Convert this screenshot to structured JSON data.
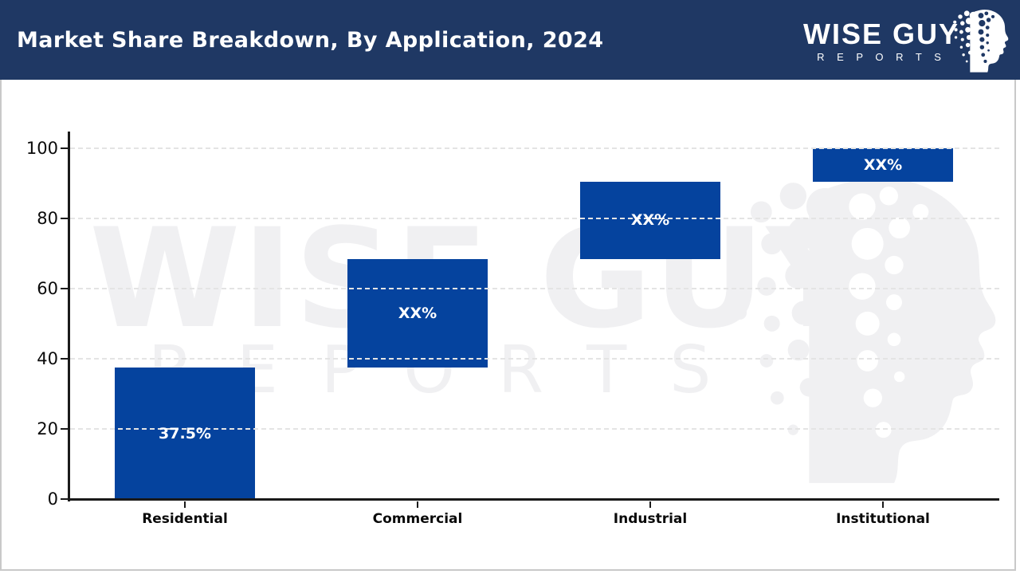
{
  "header": {
    "title": "Market Share Breakdown, By Application, 2024"
  },
  "logo": {
    "primary": "WISE GUY",
    "secondary": "R E P O R T S"
  },
  "watermark": {
    "line1": "WISE GUY",
    "line2": "R E P O R T S"
  },
  "colors": {
    "header_bg": "#1f3864",
    "bar": "#05439e",
    "bar_label": "#ffffff",
    "axis": "#1a1a1a",
    "grid": "#e4e4e4",
    "watermark": "#f0f0f2",
    "border": "#c9c9c9"
  },
  "chart_data": {
    "type": "bar",
    "subtype": "waterfall",
    "title": "Market Share Breakdown, By Application, 2024",
    "categories": [
      "Residential",
      "Commercial",
      "Industrial",
      "Institutional"
    ],
    "segments": [
      {
        "category": "Residential",
        "start": 0,
        "end": 37.5,
        "label": "37.5%"
      },
      {
        "category": "Commercial",
        "start": 37.5,
        "end": 68.5,
        "label": "XX%"
      },
      {
        "category": "Industrial",
        "start": 68.5,
        "end": 90.5,
        "label": "XX%"
      },
      {
        "category": "Institutional",
        "start": 90.5,
        "end": 100,
        "label": "XX%"
      }
    ],
    "xlabel": "",
    "ylabel": "",
    "yticks": [
      0,
      20,
      40,
      60,
      80,
      100
    ],
    "ylim": [
      0,
      105
    ],
    "grid": "dashed-horizontal",
    "legend": "none",
    "bar_color": "#05439e",
    "label_color": "#ffffff"
  }
}
